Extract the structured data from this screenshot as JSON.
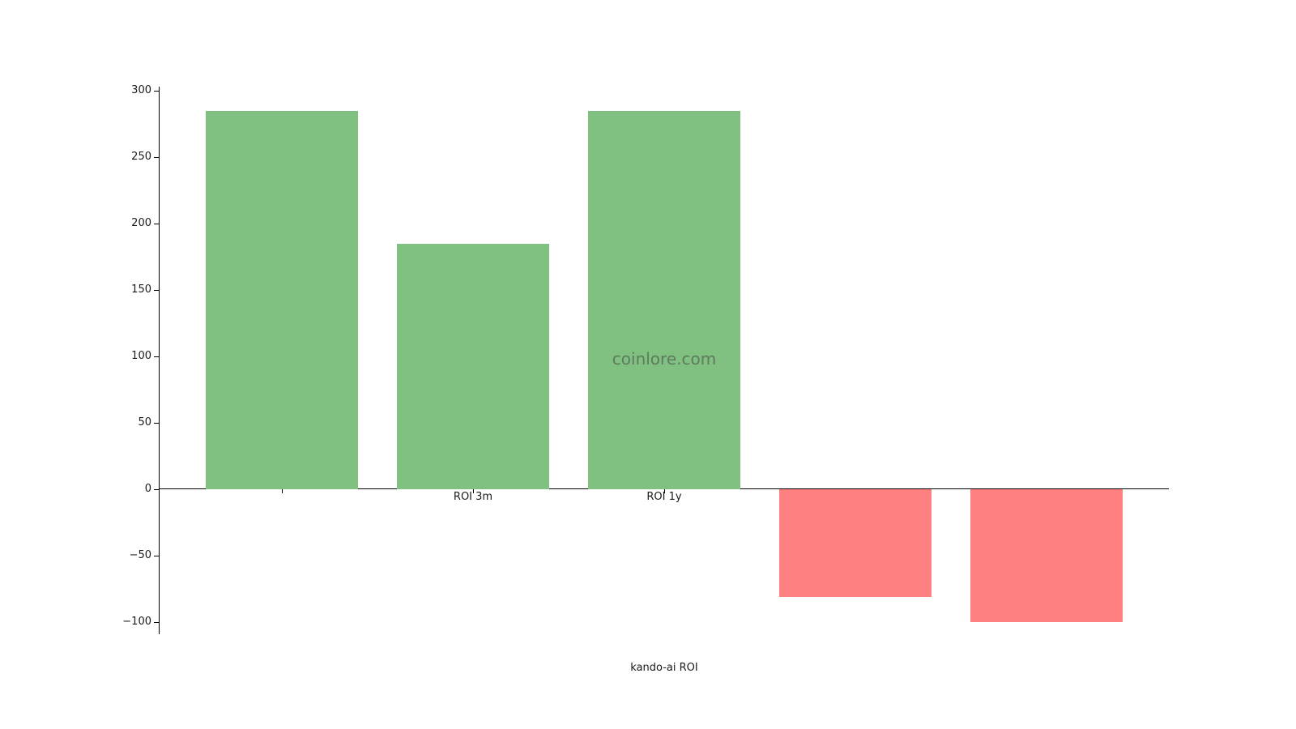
{
  "page": {
    "background": "#ffffff"
  },
  "chart_data": {
    "type": "bar",
    "title": "kando-ai ROI",
    "watermark": "coinlore.com",
    "categories": [
      "",
      "ROI 3m",
      "ROI 1y",
      "",
      ""
    ],
    "values": [
      285,
      185,
      285,
      -81,
      -100
    ],
    "yticks": [
      300,
      250,
      200,
      150,
      100,
      50,
      0,
      -50,
      -100
    ],
    "ylim": [
      -110,
      303
    ],
    "grid": false,
    "legend": false,
    "x_tick_marks_visible": [
      true,
      true,
      true,
      false,
      false
    ],
    "colors": {
      "positive": "#80c080",
      "negative": "#ff8080",
      "axis": "#000000",
      "text": "#1a1a1a",
      "watermark": "#444444"
    }
  }
}
